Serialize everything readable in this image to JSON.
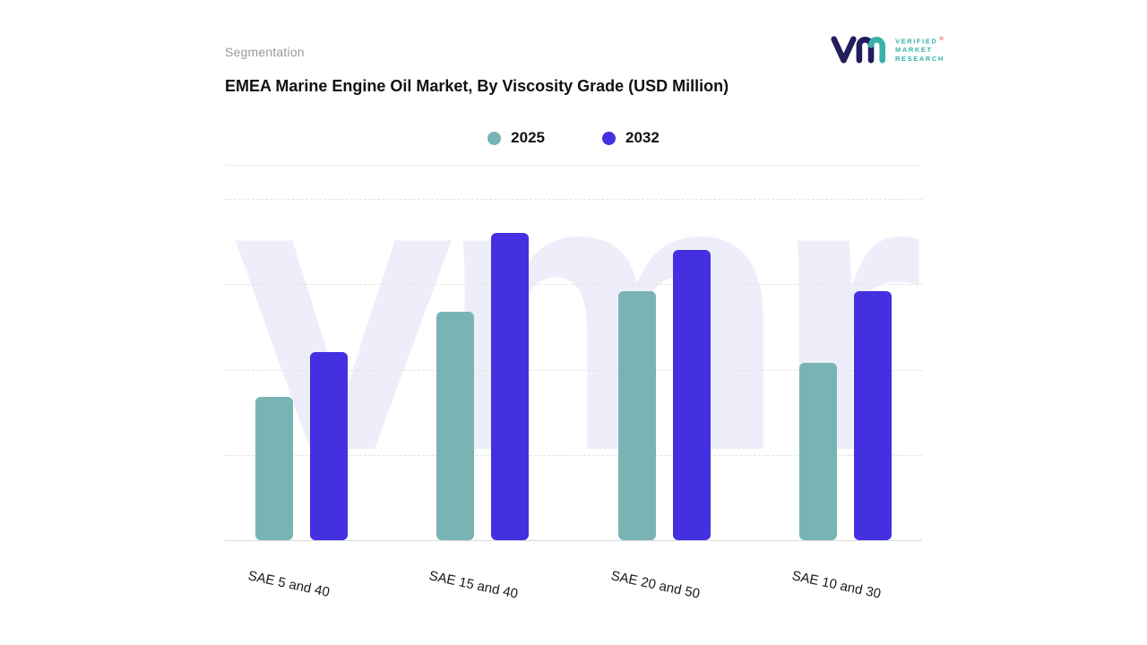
{
  "header": {
    "section_label": "Segmentation"
  },
  "title": "EMEA Marine Engine Oil Market, By Viscosity Grade (USD Million)",
  "logo": {
    "mark": "vmr",
    "lines": [
      "VERIFIED",
      "MARKET",
      "RESEARCH"
    ],
    "registered": "®"
  },
  "watermark": "vmr",
  "legend": [
    {
      "label": "2025",
      "color": "#79b4b5"
    },
    {
      "label": "2032",
      "color": "#4430e0"
    }
  ],
  "chart_data": {
    "type": "bar",
    "title": "EMEA Marine Engine Oil Market, By Viscosity Grade (USD Million)",
    "categories": [
      "SAE 5 and 40",
      "SAE 15 and 40",
      "SAE 20 and 50",
      "SAE 10 and 30"
    ],
    "series": [
      {
        "name": "2025",
        "color": "#79b4b5",
        "values": [
          42,
          67,
          73,
          52
        ]
      },
      {
        "name": "2032",
        "color": "#4430e0",
        "values": [
          55,
          90,
          85,
          73
        ]
      }
    ],
    "xlabel": "",
    "ylabel": "",
    "ylim": [
      0,
      100
    ],
    "value_axis_visible": false,
    "values_are_relative_estimates": true,
    "grid": "horizontal-dashed",
    "legend_position": "top-center"
  }
}
